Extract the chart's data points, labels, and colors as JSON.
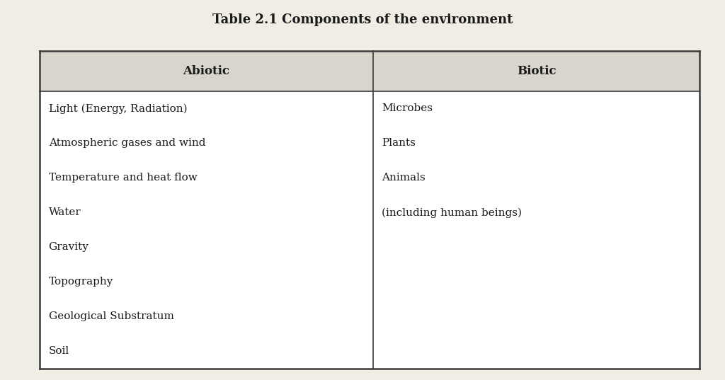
{
  "title": "Table 2.1 Components of the environment",
  "title_fontsize": 13,
  "title_fontweight": "bold",
  "col_headers": [
    "Abiotic",
    "Biotic"
  ],
  "header_fontsize": 12,
  "header_fontweight": "bold",
  "abiotic_items": [
    "Light (Energy, Radiation)",
    "Atmospheric gases and wind",
    "Temperature and heat flow",
    "Water",
    "Gravity",
    "Topography",
    "Geological Substratum",
    "Soil"
  ],
  "biotic_items": [
    "Microbes",
    "Plants",
    "Animals",
    "(including human beings)"
  ],
  "cell_fontsize": 11,
  "background_color": "#f5f5f0",
  "table_bg": "#ffffff",
  "header_bg": "#d8d5cc",
  "text_color": "#1a1a1a",
  "border_color": "#3a3a3a",
  "fig_bg": "#f0ede5"
}
